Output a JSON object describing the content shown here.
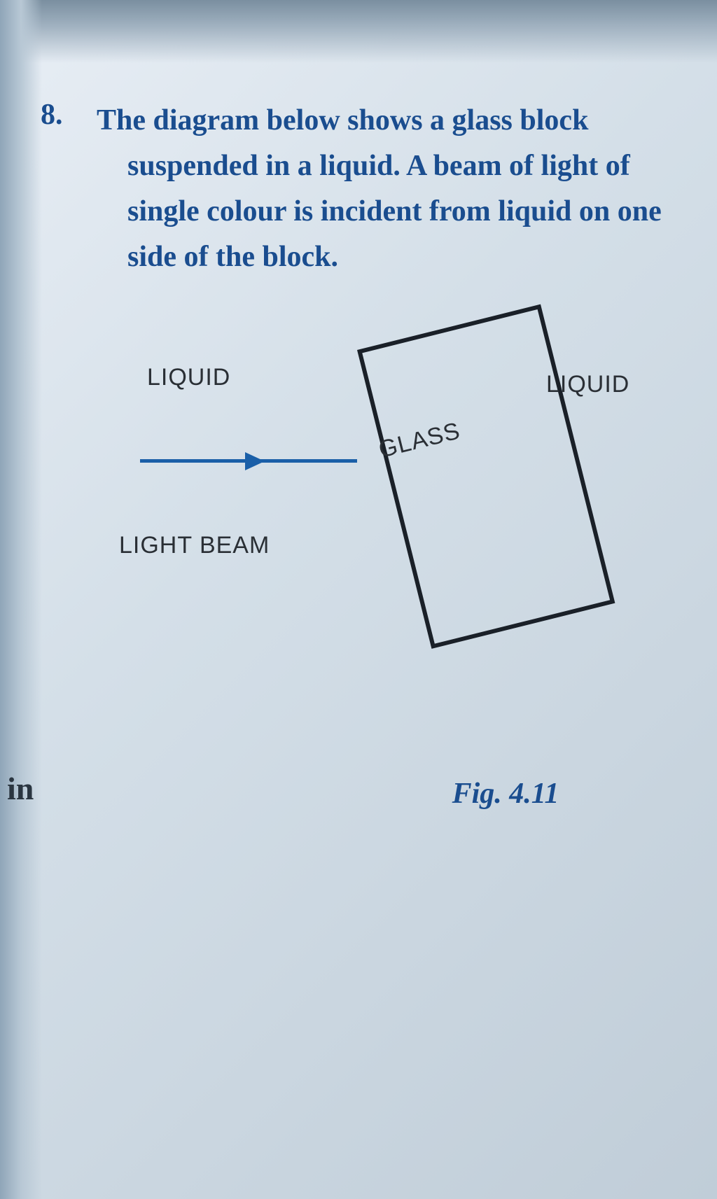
{
  "question": {
    "number": "8.",
    "text": "The diagram below shows a glass block suspended in a liquid. A beam of light of single colour is incident from liquid on one side of the block."
  },
  "diagram": {
    "labels": {
      "liquid_left": "LIQUID",
      "light_beam": "LIGHT BEAM",
      "glass": "GLASS",
      "liquid_right": "LIQUID"
    },
    "caption": "Fig. 4.11",
    "colors": {
      "heading_color": "#1a4d8f",
      "beam_color": "#1a5fa8",
      "block_border": "#1a2028",
      "label_color": "#2a2f35",
      "background": "#d4dfe8"
    },
    "typography": {
      "heading_fontsize": 42,
      "label_fontsize": 34,
      "caption_fontsize": 42
    },
    "geometry": {
      "block_rotation_deg": -14,
      "block_width": 270,
      "block_height": 440,
      "block_border_width": 6,
      "beam_length": 310,
      "beam_thickness": 5,
      "arrow_size": 28
    }
  },
  "margin": {
    "partial_text": "in"
  }
}
